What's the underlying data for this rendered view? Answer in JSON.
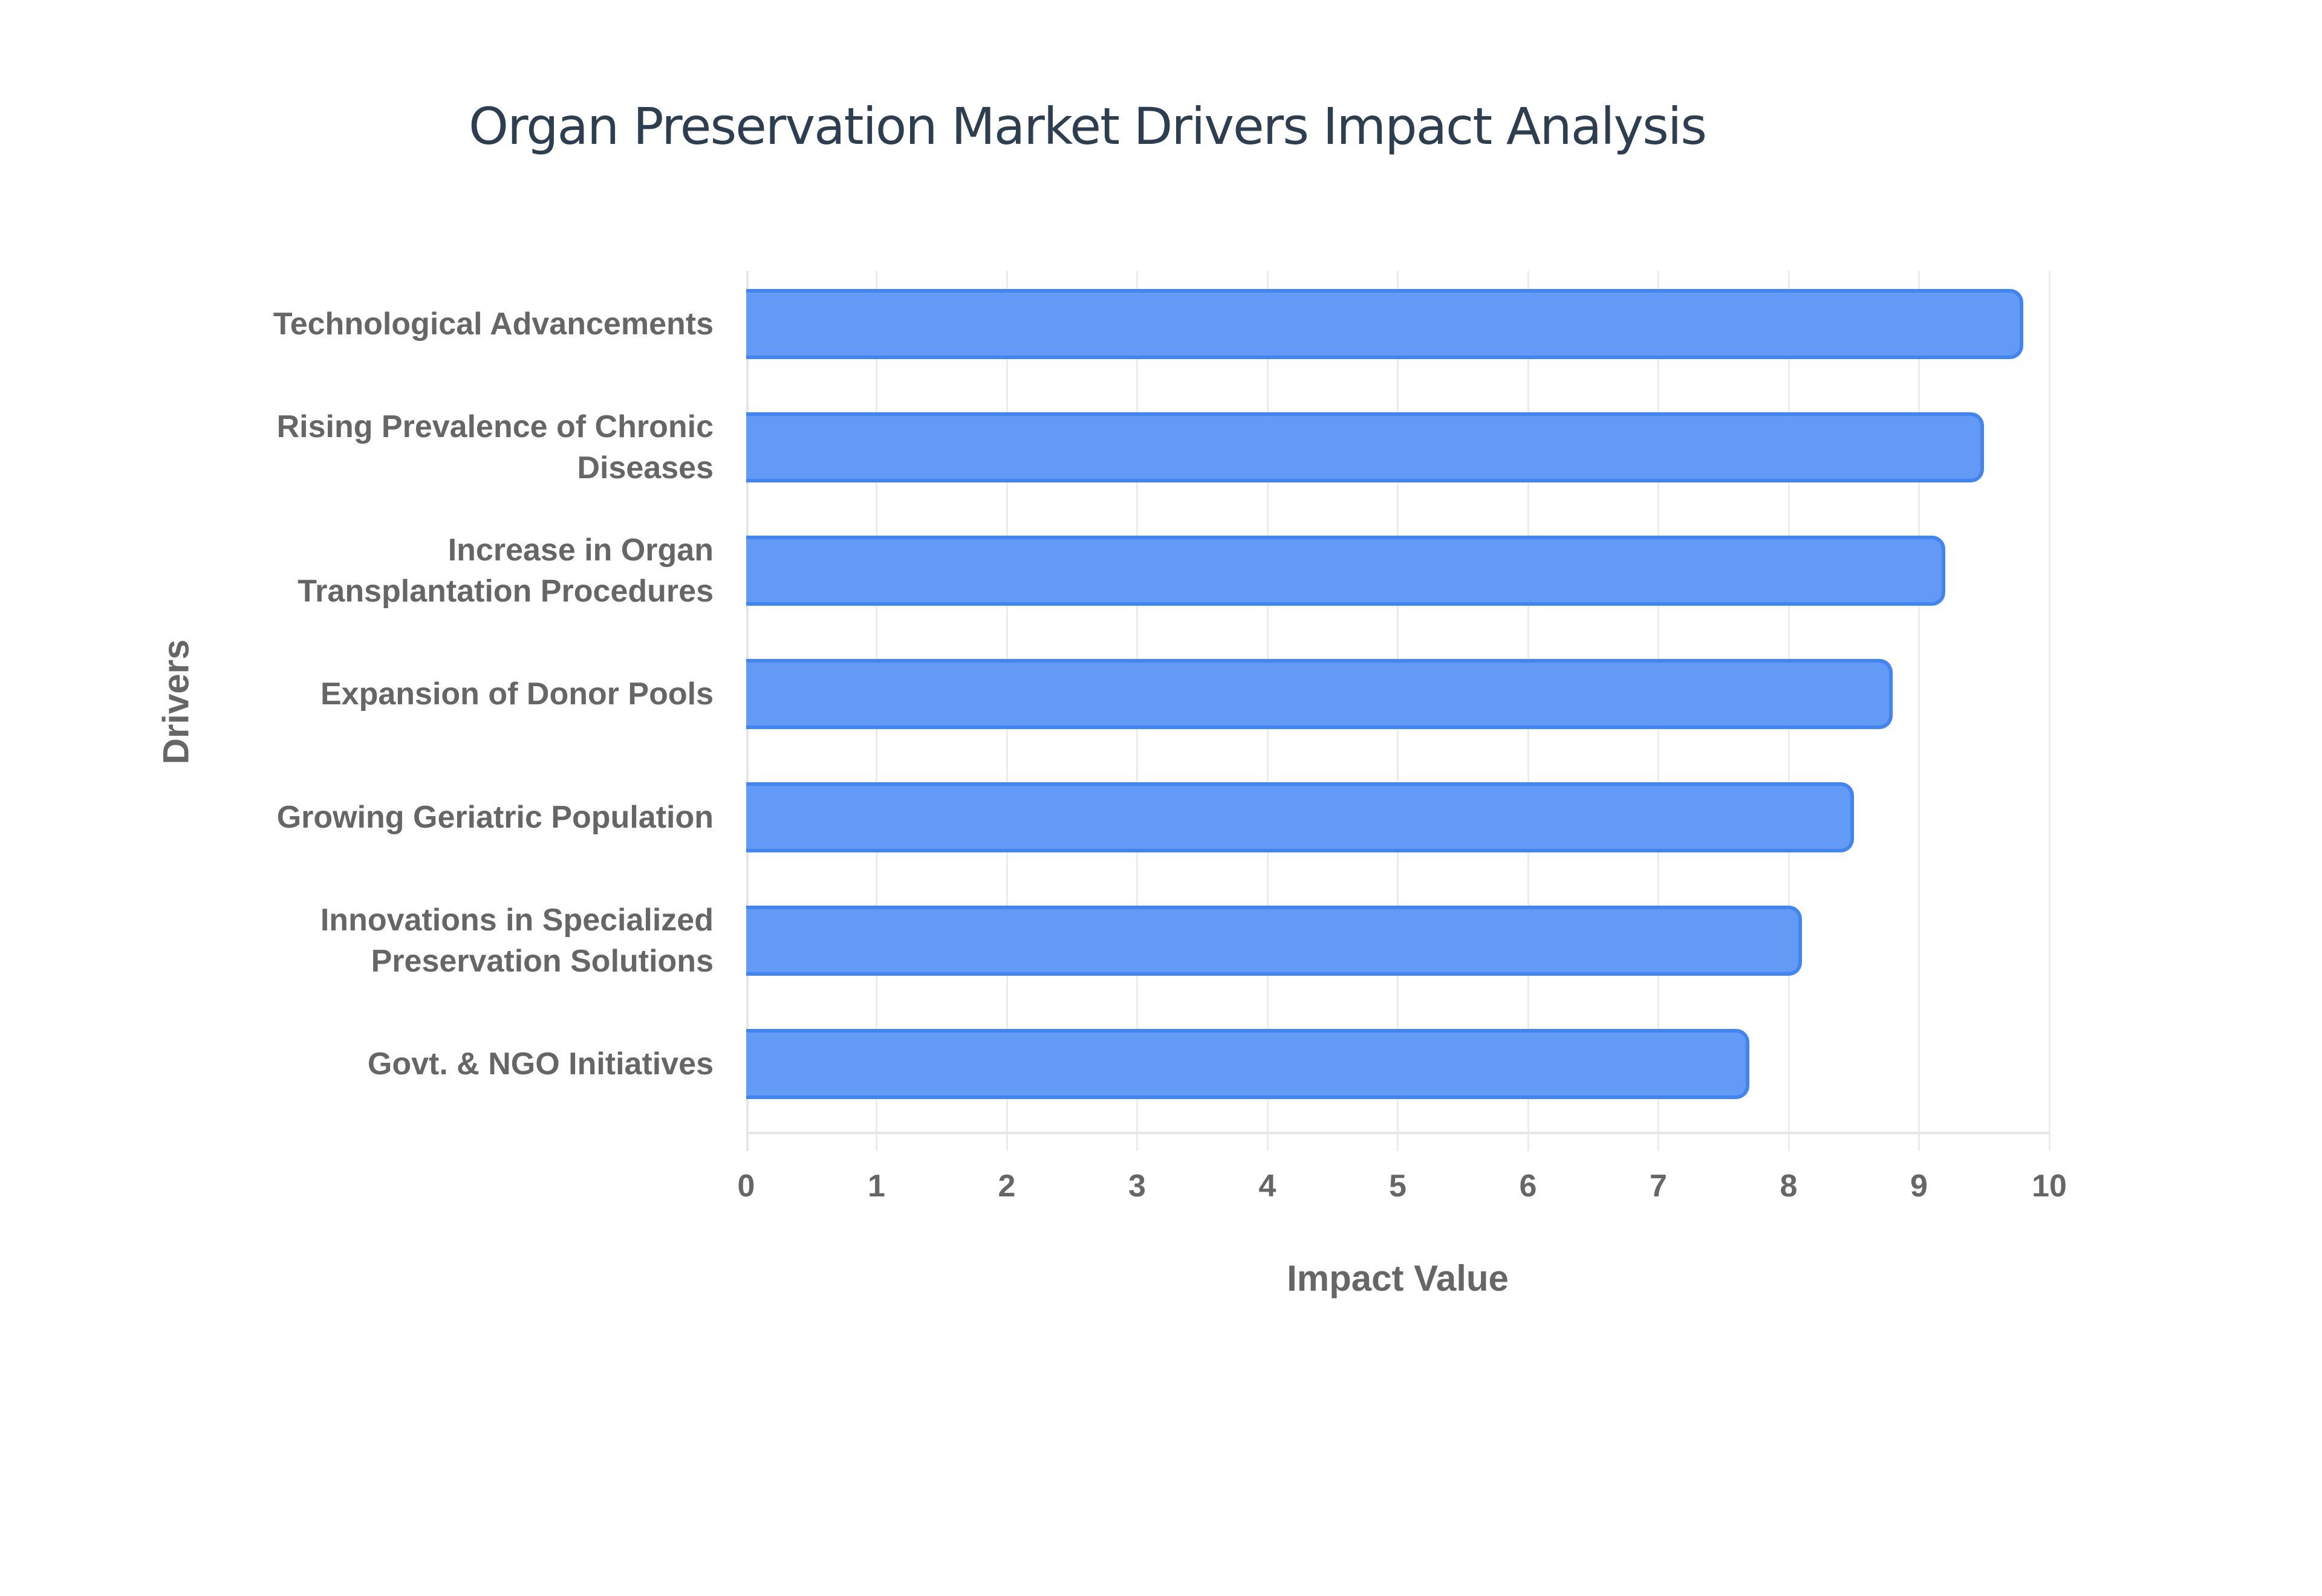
{
  "title": "Organ Preservation Market Drivers Impact Analysis",
  "x_axis": {
    "title": "Impact Value",
    "ticks": [
      "0",
      "1",
      "2",
      "3",
      "4",
      "5",
      "6",
      "7",
      "8",
      "9",
      "10"
    ]
  },
  "y_axis": {
    "title": "Drivers"
  },
  "bars": [
    {
      "label_lines": [
        "Technological Advancements"
      ],
      "value": 9.8
    },
    {
      "label_lines": [
        "Rising Prevalence of Chronic",
        "Diseases"
      ],
      "value": 9.5
    },
    {
      "label_lines": [
        "Increase in Organ",
        "Transplantation Procedures"
      ],
      "value": 9.2
    },
    {
      "label_lines": [
        "Expansion of Donor Pools"
      ],
      "value": 8.8
    },
    {
      "label_lines": [
        "Growing Geriatric Population"
      ],
      "value": 8.5
    },
    {
      "label_lines": [
        "Innovations in Specialized",
        "Preservation Solutions"
      ],
      "value": 8.1
    },
    {
      "label_lines": [
        "Govt. & NGO Initiatives"
      ],
      "value": 7.7
    }
  ],
  "colors": {
    "bar_fill": "#639af5",
    "bar_border": "#4085f0",
    "title": "#2c3e50",
    "axis_text": "#666666"
  },
  "chart_data": {
    "type": "bar",
    "orientation": "horizontal",
    "title": "Organ Preservation Market Drivers Impact Analysis",
    "xlabel": "Impact Value",
    "ylabel": "Drivers",
    "categories": [
      "Technological Advancements",
      "Rising Prevalence of Chronic Diseases",
      "Increase in Organ Transplantation Procedures",
      "Expansion of Donor Pools",
      "Growing Geriatric Population",
      "Innovations in Specialized Preservation Solutions",
      "Govt. & NGO Initiatives"
    ],
    "values": [
      9.8,
      9.5,
      9.2,
      8.8,
      8.5,
      8.1,
      7.7
    ],
    "xlim": [
      0,
      10
    ],
    "xticks": [
      0,
      1,
      2,
      3,
      4,
      5,
      6,
      7,
      8,
      9,
      10
    ],
    "grid": true,
    "legend": null
  }
}
